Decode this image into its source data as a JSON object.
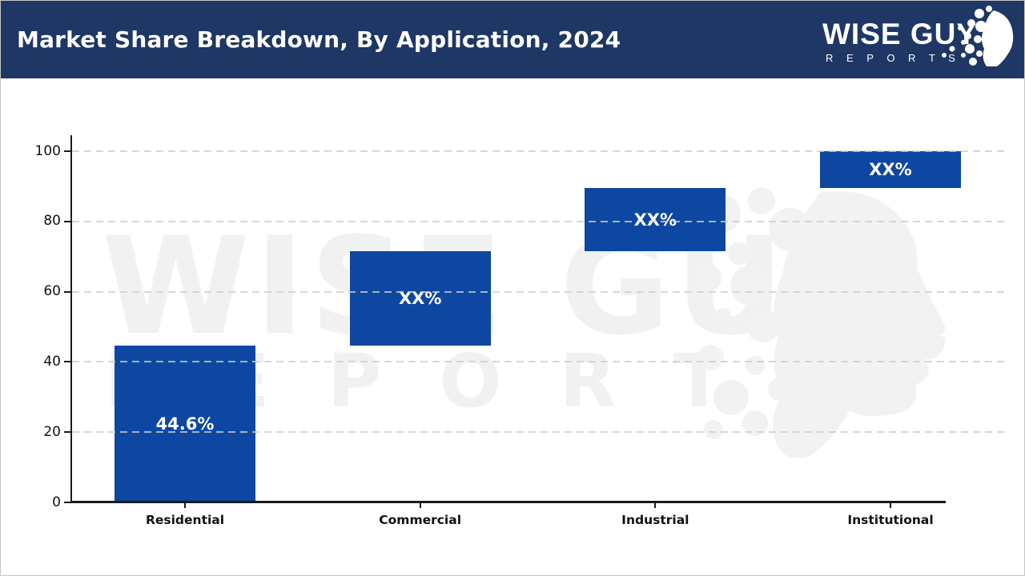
{
  "header": {
    "title": "Market Share Breakdown, By Application, 2024",
    "logo": {
      "line1": "WISE GUY",
      "line2": "R E P O R T S"
    }
  },
  "watermark": {
    "line1": "WISE GUY",
    "line2": "R E P O R T S"
  },
  "colors": {
    "header_bg": "#1e3764",
    "bar": "#0d47a1",
    "bar_label": "#ffffff",
    "watermark": "#f1f1f1",
    "gridline": "#d4d4d4",
    "axis": "#1a1a1a"
  },
  "chart_data": {
    "type": "bar",
    "subtype": "floating-waterfall",
    "title": "Market Share Breakdown, By Application, 2024",
    "categories": [
      "Residential",
      "Commercial",
      "Industrial",
      "Institutional"
    ],
    "segments": [
      {
        "category": "Residential",
        "start": 0,
        "end": 44.6,
        "value": 44.6,
        "label": "44.6%"
      },
      {
        "category": "Commercial",
        "start": 44.6,
        "end": 71.5,
        "value": 26.9,
        "label": "XX%"
      },
      {
        "category": "Industrial",
        "start": 71.5,
        "end": 89.5,
        "value": 18.0,
        "label": "XX%"
      },
      {
        "category": "Institutional",
        "start": 89.5,
        "end": 100,
        "value": 10.5,
        "label": "XX%"
      }
    ],
    "yticks": [
      0,
      20,
      40,
      60,
      80,
      100
    ],
    "ylim": [
      0,
      104
    ],
    "xlabel": "",
    "ylabel": "",
    "grid": true,
    "grid_style": "dashed-horizontal",
    "legend": false,
    "bar_color": "#0d47a1",
    "value_suffix": "%"
  }
}
